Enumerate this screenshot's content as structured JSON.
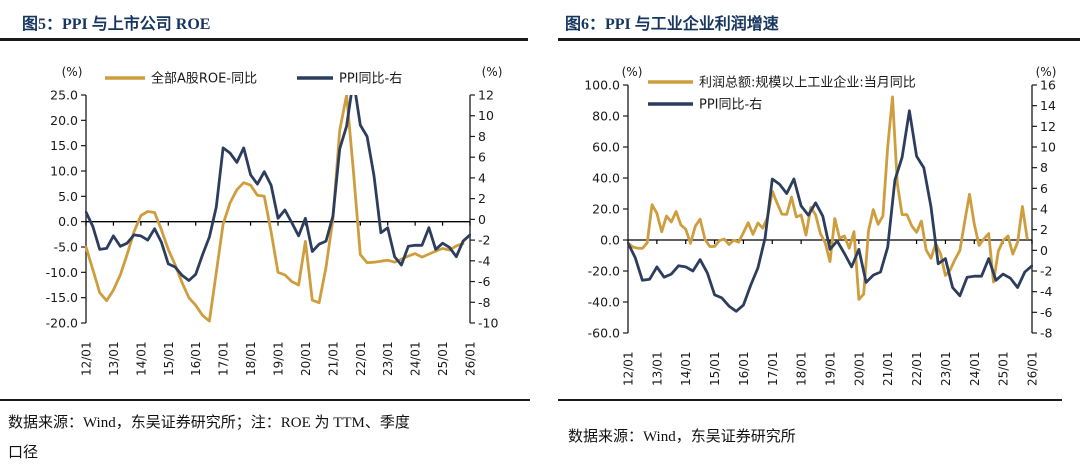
{
  "page": {
    "background": "#ffffff"
  },
  "colors": {
    "gold": "#CE9E3E",
    "navy": "#2C3D5E",
    "title_navy": "#17365d",
    "rule": "#1a1a1a"
  },
  "chart_data": [
    {
      "type": "line",
      "title": "图5：PPI 与上市公司 ROE",
      "footer": "数据来源：Wind，东吴证券研究所；注：ROE 为 TTM、季度口径",
      "x_tick_labels": [
        "12/01",
        "13/01",
        "14/01",
        "15/01",
        "16/01",
        "17/01",
        "18/01",
        "19/01",
        "20/01",
        "21/01",
        "22/01",
        "23/01",
        "24/01",
        "25/01",
        "26/01"
      ],
      "x_months_total": 168,
      "left_axis": {
        "unit": "(%)",
        "min": -20,
        "max": 25,
        "tick_labels": [
          "25.0",
          "20.0",
          "15.0",
          "10.0",
          "5.0",
          "0.0",
          "-5.0",
          "-10.0",
          "-15.0",
          "-20.0"
        ]
      },
      "right_axis": {
        "unit": "(%)",
        "min": -10,
        "max": 12,
        "tick_labels": [
          "12",
          "10",
          "8",
          "6",
          "4",
          "2",
          "0",
          "-2",
          "-4",
          "-6",
          "-8",
          "-10"
        ]
      },
      "series": [
        {
          "key": "roe-yoy",
          "name": "全部A股ROE-同比",
          "axis": "left",
          "color": "#CE9E3E",
          "start_month": 0,
          "month_step": 3,
          "values": [
            -5.0,
            -9.5,
            -14.0,
            -15.6,
            -13.5,
            -10.5,
            -6.5,
            -2.0,
            1.2,
            2.0,
            1.8,
            -1.6,
            -5.5,
            -8.5,
            -12.0,
            -15.0,
            -16.5,
            -18.5,
            -19.6,
            -10.0,
            -0.5,
            3.7,
            6.3,
            7.7,
            7.2,
            5.2,
            5.0,
            -2.0,
            -10.0,
            -10.5,
            -11.8,
            -12.5,
            -3.9,
            -15.5,
            -16.0,
            -9.0,
            0.5,
            18.0,
            25.0,
            10.0,
            -6.5,
            -8.1,
            -8.0,
            -7.8,
            -7.6,
            -8.0,
            -7.4,
            -6.8,
            -6.3,
            -7.0,
            -6.4,
            -5.8,
            -5.3,
            -5.6,
            -4.8,
            -4.3
          ]
        },
        {
          "key": "ppi-yoy",
          "name": "PPI同比-右",
          "axis": "right",
          "color": "#2C3D5E",
          "start_month": 0,
          "month_step": 3,
          "values": [
            0.7,
            -0.7,
            -2.9,
            -2.8,
            -1.6,
            -2.6,
            -2.3,
            -1.5,
            -1.6,
            -2.0,
            -0.9,
            -2.2,
            -4.3,
            -4.6,
            -5.4,
            -5.9,
            -5.3,
            -3.4,
            -1.7,
            1.2,
            6.9,
            6.4,
            5.5,
            6.9,
            4.3,
            3.4,
            4.6,
            3.3,
            0.1,
            0.9,
            -0.3,
            -1.6,
            0.1,
            -3.1,
            -2.4,
            -2.1,
            0.3,
            6.8,
            9.0,
            13.5,
            9.1,
            8.0,
            4.2,
            -1.3,
            -0.8,
            -3.6,
            -4.4,
            -2.6,
            -2.5,
            -2.5,
            -0.8,
            -2.9,
            -2.3,
            -2.7,
            -3.6,
            -2.1,
            -1.5
          ]
        }
      ]
    },
    {
      "type": "line",
      "title": "图6：PPI 与工业企业利润增速",
      "footer": "数据来源：Wind，东吴证券研究所",
      "x_tick_labels": [
        "12/01",
        "13/01",
        "14/01",
        "15/01",
        "16/01",
        "17/01",
        "18/01",
        "19/01",
        "20/01",
        "21/01",
        "22/01",
        "23/01",
        "24/01",
        "25/01",
        "26/01"
      ],
      "x_months_total": 168,
      "left_axis": {
        "unit": "(%)",
        "min": -60,
        "max": 100,
        "tick_labels": [
          "100.0",
          "80.0",
          "60.0",
          "40.0",
          "20.0",
          "0.0",
          "-20.0",
          "-40.0",
          "-60.0"
        ]
      },
      "right_axis": {
        "unit": "(%)",
        "min": -8,
        "max": 16,
        "tick_labels": [
          "16",
          "14",
          "12",
          "10",
          "8",
          "6",
          "4",
          "2",
          "0",
          "-2",
          "-4",
          "-6",
          "-8"
        ]
      },
      "series": [
        {
          "key": "industrial-profit-yoy",
          "name": "利润总额:规模以上工业企业:当月同比",
          "axis": "left",
          "color": "#CE9E3E",
          "start_month": 0,
          "month_step": 2,
          "values": [
            -2.0,
            -4.5,
            -5.3,
            -5.4,
            -1.8,
            22.8,
            17.2,
            5.3,
            15.5,
            11.6,
            18.4,
            9.7,
            7.0,
            -2.1,
            8.9,
            13.5,
            0.4,
            -4.2,
            -4.2,
            -0.4,
            0.6,
            -2.9,
            -0.1,
            -1.4,
            4.8,
            11.1,
            3.7,
            11.0,
            7.7,
            14.5,
            31.5,
            23.8,
            16.7,
            16.5,
            27.7,
            14.9,
            16.1,
            3.1,
            21.1,
            16.2,
            4.1,
            -1.8,
            -14.0,
            13.9,
            1.1,
            2.6,
            -5.3,
            5.4,
            -38.3,
            -34.9,
            6.0,
            19.6,
            10.1,
            15.5,
            60.0,
            92.3,
            36.4,
            16.4,
            16.3,
            9.0,
            5.0,
            12.2,
            -6.5,
            -11.8,
            -2.3,
            -8.9,
            -22.9,
            -19.2,
            -12.6,
            -6.7,
            11.9,
            29.5,
            10.2,
            -3.5,
            0.7,
            4.1,
            -27.1,
            -7.3,
            -0.3,
            2.6,
            -9.1,
            -1.5,
            21.6,
            1.0
          ]
        },
        {
          "key": "ppi-yoy",
          "name": "PPI同比-右",
          "axis": "right",
          "color": "#2C3D5E",
          "start_month": 0,
          "month_step": 3,
          "values": [
            0.7,
            -0.7,
            -2.9,
            -2.8,
            -1.6,
            -2.6,
            -2.3,
            -1.5,
            -1.6,
            -2.0,
            -0.9,
            -2.2,
            -4.3,
            -4.6,
            -5.4,
            -5.9,
            -5.3,
            -3.4,
            -1.7,
            1.2,
            6.9,
            6.4,
            5.5,
            6.9,
            4.3,
            3.4,
            4.6,
            3.3,
            0.1,
            0.9,
            -0.3,
            -1.6,
            0.1,
            -3.1,
            -2.4,
            -2.1,
            0.3,
            6.8,
            9.0,
            13.5,
            9.1,
            8.0,
            4.2,
            -1.3,
            -0.8,
            -3.6,
            -4.4,
            -2.6,
            -2.5,
            -2.5,
            -0.8,
            -2.9,
            -2.3,
            -2.7,
            -3.6,
            -2.1,
            -1.5
          ]
        }
      ]
    }
  ]
}
